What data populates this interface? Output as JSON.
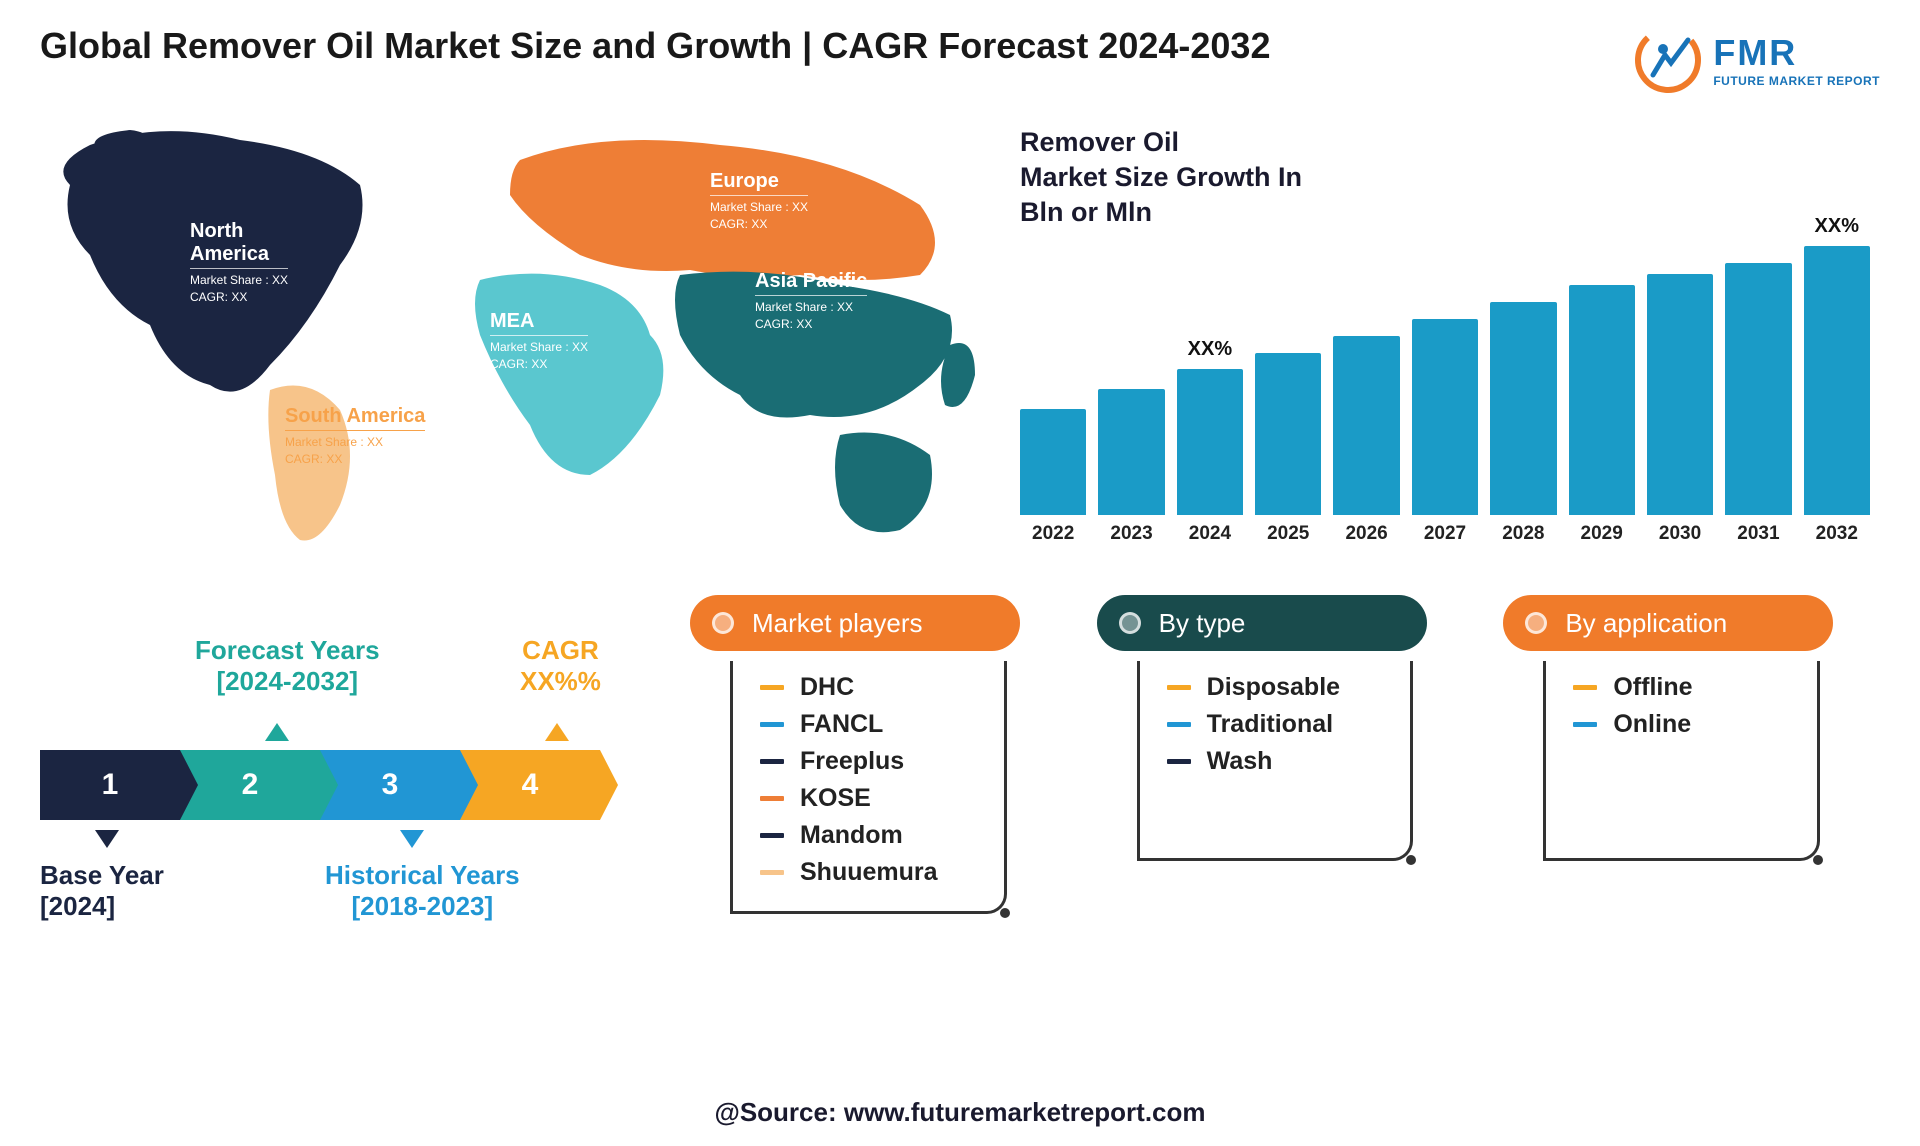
{
  "title": "Global Remover Oil Market Size and Growth | CAGR Forecast 2024-2032",
  "logo": {
    "fmr": "FMR",
    "sub": "FUTURE MARKET REPORT"
  },
  "colors": {
    "na": "#1b2541",
    "sa": "#f7c48a",
    "eu": "#ee7e36",
    "mea": "#5ac7cf",
    "ap": "#1a6d74",
    "bar": "#1a9bc7",
    "seg1": "#1b2541",
    "seg2": "#1fa79b",
    "seg3": "#2196d4",
    "seg4": "#f6a623",
    "pill_orange": "#f07b2a",
    "pill_teal": "#194b4c"
  },
  "regions": {
    "na": {
      "name": "North\nAmerica",
      "share": "Market Share : XX",
      "cagr": "CAGR: XX"
    },
    "sa": {
      "name": "South America",
      "share": "Market Share : XX",
      "cagr": "CAGR: XX"
    },
    "eu": {
      "name": "Europe",
      "share": "Market Share : XX",
      "cagr": "CAGR: XX"
    },
    "mea": {
      "name": "MEA",
      "share": "Market Share : XX",
      "cagr": "CAGR: XX"
    },
    "ap": {
      "name": "Asia Pacific",
      "share": "Market Share : XX",
      "cagr": "CAGR: XX"
    }
  },
  "chart": {
    "title": "Remover Oil\nMarket Size Growth In\nBln or Mln",
    "type": "bar",
    "years": [
      "2022",
      "2023",
      "2024",
      "2025",
      "2026",
      "2027",
      "2028",
      "2029",
      "2030",
      "2031",
      "2032"
    ],
    "heights_pct": [
      38,
      45,
      52,
      58,
      64,
      70,
      76,
      82,
      86,
      90,
      96
    ],
    "bar_color": "#1a9bc7",
    "annotations": [
      {
        "index": 2,
        "text": "XX%"
      },
      {
        "index": 10,
        "text": "XX%"
      }
    ]
  },
  "timeline": {
    "forecast": {
      "label": "Forecast Years",
      "range": "[2024-2032]",
      "color": "#1fa79b"
    },
    "cagr": {
      "label": "CAGR",
      "value": "XX%%",
      "color": "#f6a623"
    },
    "base": {
      "label": "Base Year",
      "range": "[2024]",
      "color": "#1b2541"
    },
    "hist": {
      "label": "Historical Years",
      "range": "[2018-2023]",
      "color": "#2196d4"
    },
    "segments": [
      "1",
      "2",
      "3",
      "4"
    ]
  },
  "categories": {
    "players": {
      "title": "Market players",
      "pill_color": "#f07b2a",
      "items": [
        {
          "label": "DHC",
          "color": "#f6a623"
        },
        {
          "label": "FANCL",
          "color": "#2196d4"
        },
        {
          "label": "Freeplus",
          "color": "#1b2541"
        },
        {
          "label": "KOSE",
          "color": "#ee7e36"
        },
        {
          "label": "Mandom",
          "color": "#1b2541"
        },
        {
          "label": "Shuuemura",
          "color": "#f7c48a"
        }
      ]
    },
    "type": {
      "title": "By type",
      "pill_color": "#194b4c",
      "items": [
        {
          "label": "Disposable",
          "color": "#f6a623"
        },
        {
          "label": "Traditional",
          "color": "#2196d4"
        },
        {
          "label": "Wash",
          "color": "#1b2541"
        }
      ]
    },
    "application": {
      "title": "By application",
      "pill_color": "#f07b2a",
      "items": [
        {
          "label": "Offline",
          "color": "#f6a623"
        },
        {
          "label": "Online",
          "color": "#2196d4"
        }
      ]
    }
  },
  "source": "@Source: www.futuremarketreport.com"
}
